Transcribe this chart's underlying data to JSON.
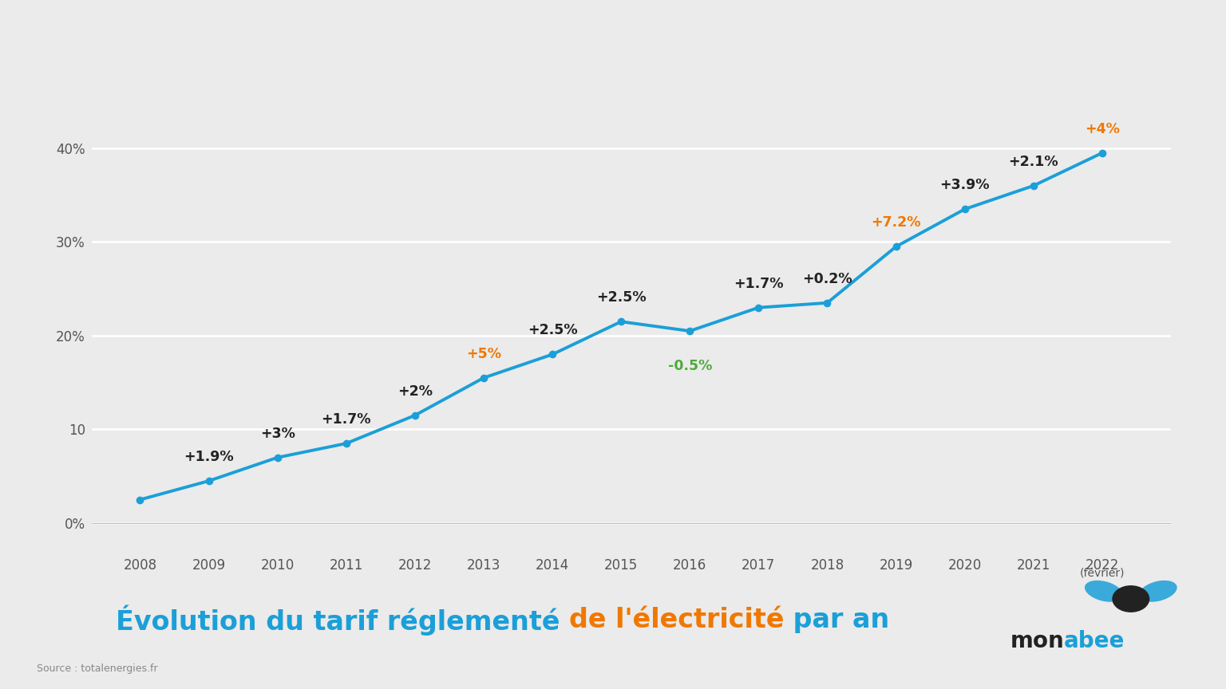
{
  "years": [
    2008,
    2009,
    2010,
    2011,
    2012,
    2013,
    2014,
    2015,
    2016,
    2017,
    2018,
    2019,
    2020,
    2021,
    2022
  ],
  "values": [
    2.5,
    4.5,
    7.0,
    8.5,
    11.5,
    15.5,
    18.0,
    21.5,
    20.5,
    23.0,
    23.5,
    29.5,
    33.5,
    36.0,
    39.5
  ],
  "labels": [
    "+1.9%",
    "+3%",
    "+1.7%",
    "+2%",
    "+5%",
    "+2.5%",
    "+2.5%",
    "-0.5%",
    "+1.7%",
    "+0.2%",
    "+7.2%",
    "+3.9%",
    "+2.1%",
    "+4%"
  ],
  "label_colors": [
    "#222222",
    "#222222",
    "#222222",
    "#222222",
    "#F07800",
    "#222222",
    "#222222",
    "#4DAA3D",
    "#222222",
    "#222222",
    "#F07800",
    "#222222",
    "#222222",
    "#F07800"
  ],
  "label_offsets_y": [
    1.8,
    1.8,
    1.8,
    1.8,
    1.8,
    1.8,
    1.8,
    -3.0,
    1.8,
    1.8,
    1.8,
    1.8,
    1.8,
    1.8
  ],
  "line_color": "#1B9FD8",
  "marker_color": "#1B9FD8",
  "bg_color": "#EBEBEB",
  "grid_color": "#FFFFFF",
  "source_text": "Source : totalenergies.fr",
  "ytick_vals": [
    0,
    10,
    20,
    30,
    40
  ],
  "ytick_labels": [
    "0%",
    "10",
    "20%",
    "30%",
    "40%"
  ],
  "ylim": [
    -3,
    47
  ],
  "xlim": [
    2007.3,
    2023.0
  ],
  "title_t1": "Évolution du tarif réglementé ",
  "title_t2": "de l'électricité",
  "title_t3": " par an",
  "title_c1": "#1B9FD8",
  "title_c2": "#F07800",
  "title_c3": "#1B9FD8",
  "logo_mon": "mon",
  "logo_abee": "abee",
  "logo_c1": "#222222",
  "logo_c2": "#1B9FD8"
}
